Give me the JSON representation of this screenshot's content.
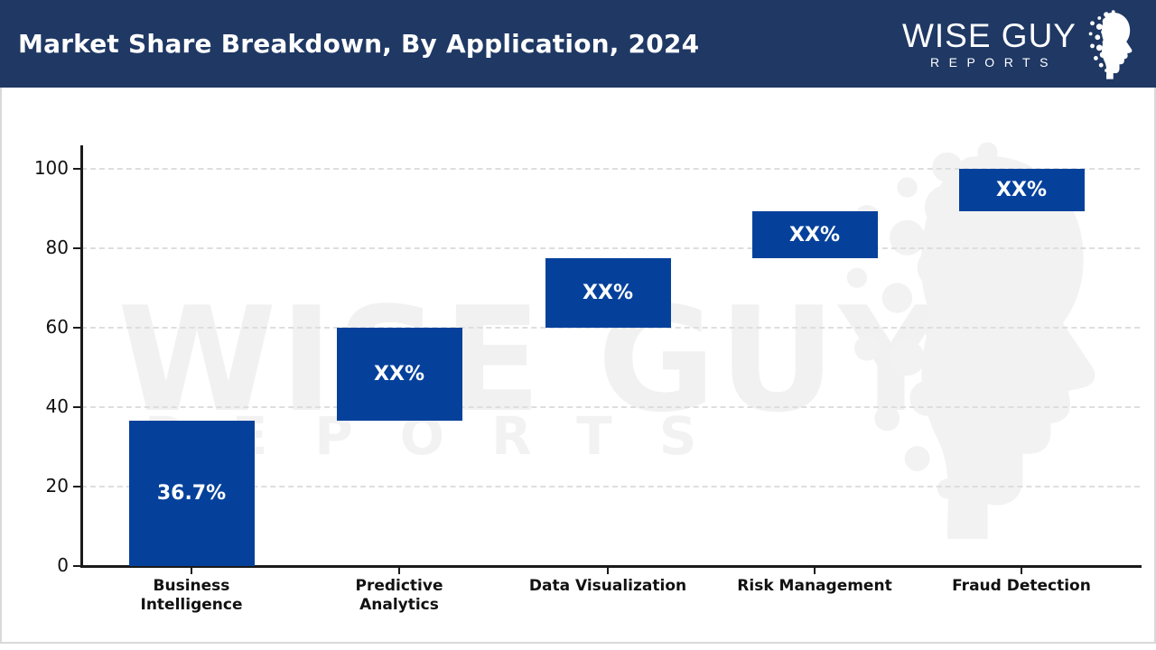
{
  "header": {
    "title": "Market Share Breakdown, By Application, 2024",
    "logo": {
      "line1": "WISE GUY",
      "line2": "REPORTS"
    }
  },
  "watermark": {
    "line1": "WISE GUY",
    "line2": "REPORTS"
  },
  "colors": {
    "header_background": "#1f3864",
    "bar_blue": "#05419b",
    "frame_border": "#d9d9d9",
    "gridline": "#dedede",
    "axis": "#1a1a1a"
  },
  "chart_data": {
    "type": "bar",
    "subtype": "waterfall",
    "title": "Market Share Breakdown, By Application, 2024",
    "categories": [
      "Business Intelligence",
      "Predictive Analytics",
      "Data Visualization",
      "Risk Management",
      "Fraud Detection"
    ],
    "category_lines": [
      [
        "Business",
        "Intelligence"
      ],
      [
        "Predictive",
        "Analytics"
      ],
      [
        "Data Visualization"
      ],
      [
        "Risk Management"
      ],
      [
        "Fraud Detection"
      ]
    ],
    "segments": [
      {
        "category": "Business Intelligence",
        "start": 0,
        "end": 36.7,
        "label": "36.7%"
      },
      {
        "category": "Predictive Analytics",
        "start": 36.7,
        "end": 60,
        "label": "XX%"
      },
      {
        "category": "Data Visualization",
        "start": 60,
        "end": 77.5,
        "label": "XX%"
      },
      {
        "category": "Risk Management",
        "start": 77.5,
        "end": 89.3,
        "label": "XX%"
      },
      {
        "category": "Fraud Detection",
        "start": 89.3,
        "end": 100,
        "label": "XX%"
      }
    ],
    "yticks": [
      0,
      20,
      40,
      60,
      80,
      100
    ],
    "ylim": [
      0,
      105
    ],
    "xlabel": "",
    "ylabel": "",
    "grid": "horizontal-dashed",
    "legend": "none",
    "bar_color": "#05419b",
    "bar_label_color": "#ffffff"
  }
}
